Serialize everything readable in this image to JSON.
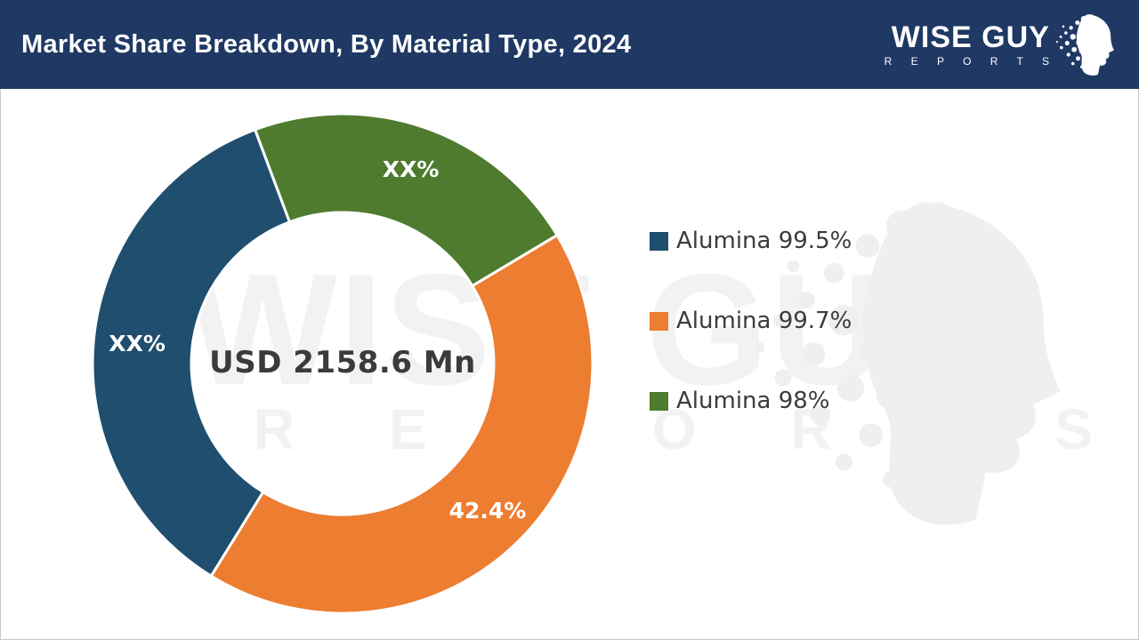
{
  "header": {
    "title": "Market Share Breakdown, By Material Type, 2024",
    "logo": {
      "wordmark": "WISE GUY",
      "subtitle": "R E P O R T S"
    },
    "background_color": "#1F3864"
  },
  "watermark": {
    "line1": "WISE GUY",
    "line2": "R E P O R T S"
  },
  "chart_data": {
    "type": "pie",
    "variant": "donut",
    "title": "Market Share Breakdown, By Material Type, 2024",
    "center_label": "USD 2158.6 Mn",
    "legend_position": "right",
    "start_angle_deg": 110.5,
    "direction": "counterclockwise",
    "slices": [
      {
        "name": "Alumina 99.5%",
        "value_pct": 35.5,
        "label": "XX%",
        "color": "#1F4E6E"
      },
      {
        "name": "Alumina 99.7%",
        "value_pct": 42.4,
        "label": "42.4%",
        "color": "#ED7D31"
      },
      {
        "name": "Alumina 98%",
        "value_pct": 22.1,
        "label": "XX%",
        "color": "#4E7B2D"
      }
    ]
  },
  "colors": {
    "header_bg": "#1F3864",
    "text_dark": "#3B3B3B",
    "border": "#C9C9C9",
    "watermark": "#F2F2F2",
    "slice_separator": "#FFFFFF"
  }
}
